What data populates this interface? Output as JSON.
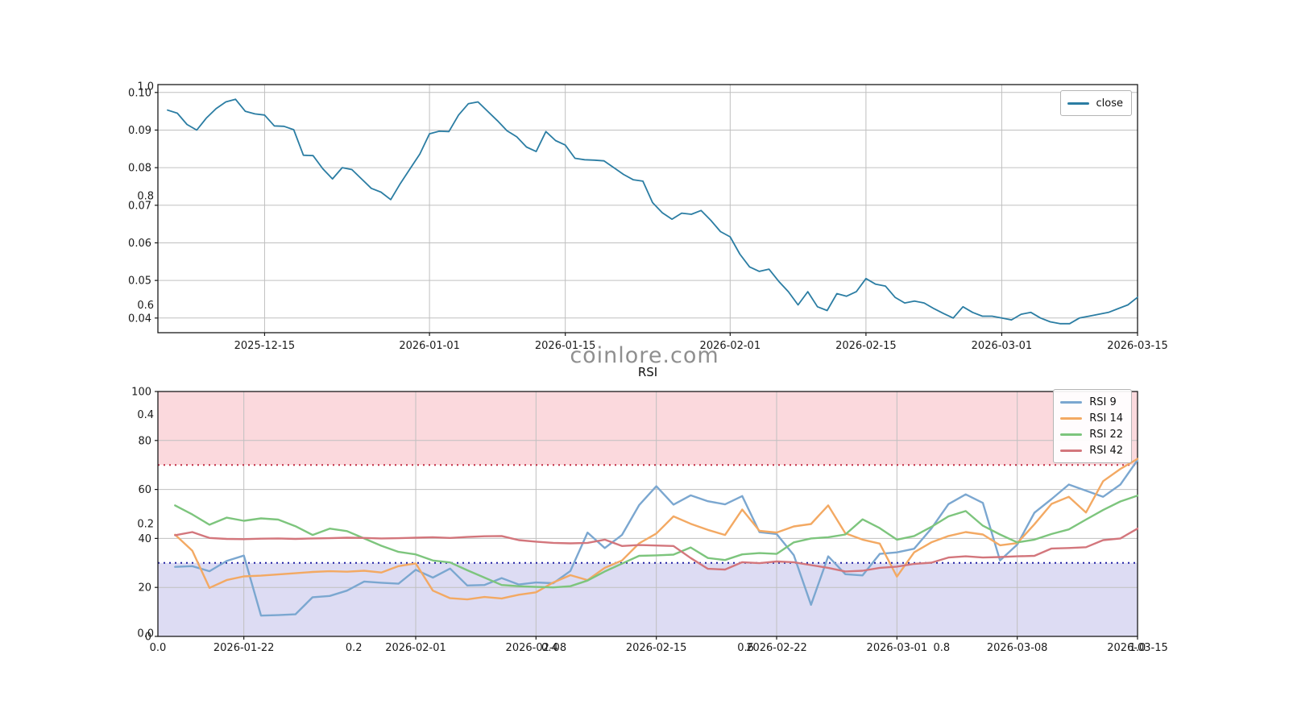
{
  "watermark": "coinlore.com",
  "palette": {
    "spine": "#1a1a1a",
    "grid": "#c0c0c0",
    "tick_text": "#1a1a1a",
    "watermark_color": "#8f8f8f",
    "overbought_band": "#fbd9dd",
    "oversold_band": "#dddcf3",
    "overbought_line": "#c22f45",
    "oversold_line": "#2121a3"
  },
  "chart_data": [
    {
      "type": "line",
      "title": "",
      "xlabel": "",
      "ylabel": "",
      "grid": true,
      "legend_position": "upper right",
      "legend": [
        "close"
      ],
      "ylim": [
        0.0361,
        0.1021
      ],
      "yticks": [
        {
          "v": 0.04,
          "label": "0.04"
        },
        {
          "v": 0.05,
          "label": "0.05"
        },
        {
          "v": 0.06,
          "label": "0.06"
        },
        {
          "v": 0.07,
          "label": "0.07"
        },
        {
          "v": 0.08,
          "label": "0.08"
        },
        {
          "v": 0.09,
          "label": "0.09"
        },
        {
          "v": 0.1,
          "label": "0.10"
        }
      ],
      "x_domain": [
        "2025-12-04",
        "2026-03-15"
      ],
      "xticks": [
        {
          "date": "2025-12-15",
          "label": "2025-12-15"
        },
        {
          "date": "2026-01-01",
          "label": "2026-01-01"
        },
        {
          "date": "2026-01-15",
          "label": "2026-01-15"
        },
        {
          "date": "2026-02-01",
          "label": "2026-02-01"
        },
        {
          "date": "2026-02-15",
          "label": "2026-02-15"
        },
        {
          "date": "2026-03-01",
          "label": "2026-03-01"
        },
        {
          "date": "2026-03-15",
          "label": "2026-03-15"
        }
      ],
      "series": [
        {
          "id": "close-line",
          "name": "close",
          "color": "#2b7da3",
          "width": 1.8,
          "start": "2025-12-05",
          "step_days": 1,
          "values": [
            0.0953,
            0.0945,
            0.0915,
            0.09,
            0.0932,
            0.0957,
            0.0975,
            0.0982,
            0.095,
            0.0943,
            0.094,
            0.0911,
            0.091,
            0.0901,
            0.0833,
            0.0832,
            0.0797,
            0.077,
            0.08,
            0.0795,
            0.077,
            0.0745,
            0.0735,
            0.0715,
            0.0758,
            0.0797,
            0.0836,
            0.089,
            0.0897,
            0.0896,
            0.094,
            0.097,
            0.0975,
            0.095,
            0.0925,
            0.0898,
            0.0882,
            0.0855,
            0.0843,
            0.0896,
            0.0872,
            0.086,
            0.0825,
            0.0821,
            0.082,
            0.0818,
            0.08,
            0.0782,
            0.0768,
            0.0764,
            0.0707,
            0.068,
            0.0663,
            0.0679,
            0.0676,
            0.0686,
            0.066,
            0.063,
            0.0616,
            0.057,
            0.0536,
            0.0524,
            0.053,
            0.0498,
            0.047,
            0.0435,
            0.047,
            0.043,
            0.042,
            0.0465,
            0.0458,
            0.047,
            0.0505,
            0.049,
            0.0485,
            0.0455,
            0.044,
            0.0445,
            0.044,
            0.0425,
            0.0412,
            0.04,
            0.043,
            0.0415,
            0.0405,
            0.0405,
            0.04,
            0.0395,
            0.041,
            0.0415,
            0.04,
            0.039,
            0.0385,
            0.0385,
            0.04,
            0.0405,
            0.041,
            0.0415,
            0.0425,
            0.0435,
            0.0455
          ]
        }
      ]
    },
    {
      "type": "line",
      "title": "RSI",
      "xlabel": "",
      "ylabel": "",
      "grid": true,
      "legend_position": "upper right",
      "legend": [
        "RSI 9",
        "RSI 14",
        "RSI 22",
        "RSI 42"
      ],
      "ylim": [
        0,
        100
      ],
      "yticks": [
        {
          "v": 0,
          "label": "0"
        },
        {
          "v": 20,
          "label": "20"
        },
        {
          "v": 40,
          "label": "40"
        },
        {
          "v": 60,
          "label": "60"
        },
        {
          "v": 80,
          "label": "80"
        },
        {
          "v": 100,
          "label": "100"
        }
      ],
      "bands": [
        {
          "from": 70,
          "to": 100,
          "color": "#fbd9dd",
          "name": "overbought-band"
        },
        {
          "from": 0,
          "to": 30,
          "color": "#dddcf3",
          "name": "oversold-band"
        }
      ],
      "hlines": [
        {
          "y": 70,
          "color": "#c22f45",
          "name": "overbought-threshold"
        },
        {
          "y": 30,
          "color": "#2121a3",
          "name": "oversold-threshold"
        }
      ],
      "x_domain": [
        "2026-01-17",
        "2026-03-15"
      ],
      "xticks": [
        {
          "date": "2026-01-22",
          "label": "2026-01-22"
        },
        {
          "date": "2026-02-01",
          "label": "2026-02-01"
        },
        {
          "date": "2026-02-08",
          "label": "2026-02-08"
        },
        {
          "date": "2026-02-15",
          "label": "2026-02-15"
        },
        {
          "date": "2026-02-22",
          "label": "2026-02-22"
        },
        {
          "date": "2026-03-01",
          "label": "2026-03-01"
        },
        {
          "date": "2026-03-08",
          "label": "2026-03-08"
        },
        {
          "date": "2026-03-15",
          "label": "2026-03-15"
        }
      ],
      "series": [
        {
          "id": "rsi-9-line",
          "name": "RSI 9",
          "color": "#7ba7d0",
          "width": 2.4,
          "start": "2026-01-18",
          "step_days": 1,
          "values": [
            28.4,
            28.7,
            26.6,
            30.8,
            33.0,
            8.5,
            8.7,
            9.0,
            16.0,
            16.5,
            18.7,
            22.4,
            21.9,
            21.5,
            27.2,
            24.0,
            27.7,
            20.8,
            21.0,
            23.8,
            21.2,
            22.0,
            21.7,
            26.7,
            42.4,
            36.1,
            41.4,
            53.6,
            61.3,
            53.8,
            57.6,
            55.2,
            53.9,
            57.3,
            42.6,
            41.8,
            33.2,
            12.9,
            32.7,
            25.4,
            24.9,
            33.7,
            34.3,
            35.8,
            44.0,
            54.0,
            58.0,
            54.5,
            31.0,
            37.5,
            50.5,
            56.1,
            62.0,
            59.5,
            57.0,
            62.0,
            72.0
          ]
        },
        {
          "id": "rsi-14-line",
          "name": "RSI 14",
          "color": "#f3a963",
          "width": 2.4,
          "start": "2026-01-18",
          "step_days": 1,
          "values": [
            41.5,
            35.0,
            19.8,
            23.0,
            24.5,
            24.8,
            25.3,
            25.8,
            26.3,
            26.6,
            26.4,
            26.8,
            26.1,
            28.7,
            29.8,
            18.7,
            15.6,
            15.1,
            16.1,
            15.5,
            17.0,
            18.0,
            22.0,
            25.0,
            23.0,
            28.0,
            31.0,
            38.0,
            42.0,
            49.0,
            46.0,
            43.5,
            41.4,
            51.8,
            43.1,
            42.4,
            44.9,
            45.9,
            53.5,
            42.1,
            39.5,
            37.9,
            24.4,
            34.3,
            38.4,
            41.0,
            42.6,
            41.6,
            37.2,
            38.1,
            45.8,
            54.1,
            57.0,
            50.6,
            63.4,
            68.4,
            72.5
          ]
        },
        {
          "id": "rsi-22-line",
          "name": "RSI 22",
          "color": "#7dc57d",
          "width": 2.4,
          "start": "2026-01-18",
          "step_days": 1,
          "values": [
            53.5,
            49.8,
            45.6,
            48.5,
            47.2,
            48.2,
            47.7,
            45.0,
            41.4,
            44.0,
            43.0,
            40.0,
            37.0,
            34.5,
            33.5,
            31.0,
            30.2,
            27.0,
            24.0,
            21.0,
            20.5,
            20.2,
            20.0,
            20.5,
            22.8,
            26.5,
            29.7,
            32.9,
            33.1,
            33.4,
            36.3,
            32.0,
            31.2,
            33.5,
            34.0,
            33.7,
            38.4,
            40.0,
            40.5,
            41.6,
            47.8,
            44.2,
            39.5,
            41.0,
            44.7,
            49.0,
            51.2,
            45.2,
            41.6,
            38.4,
            39.5,
            41.8,
            43.7,
            47.7,
            51.6,
            55.1,
            57.5
          ]
        },
        {
          "id": "rsi-42-line",
          "name": "RSI 42",
          "color": "#d3767c",
          "width": 2.4,
          "start": "2026-01-18",
          "step_days": 1,
          "values": [
            41.3,
            42.6,
            40.2,
            39.8,
            39.7,
            39.9,
            40.0,
            39.8,
            40.0,
            40.1,
            40.3,
            40.2,
            40.0,
            40.1,
            40.3,
            40.5,
            40.2,
            40.6,
            40.9,
            41.0,
            39.3,
            38.7,
            38.2,
            38.0,
            38.2,
            39.5,
            36.9,
            37.3,
            37.1,
            36.9,
            32.0,
            27.6,
            27.3,
            30.3,
            29.9,
            30.6,
            30.3,
            29.1,
            28.0,
            26.5,
            26.8,
            28.0,
            28.5,
            29.6,
            30.1,
            32.2,
            32.7,
            32.2,
            32.4,
            32.7,
            32.9,
            35.9,
            36.1,
            36.4,
            39.3,
            40.0,
            44.0
          ]
        }
      ]
    }
  ],
  "overlay_axis": {
    "y_labels": [
      "1.0",
      "0.8",
      "0.6",
      "0.4",
      "0.2",
      "0.0"
    ],
    "x_labels": [
      "0.0",
      "0.2",
      "0.4",
      "0.6",
      "0.8",
      "1.0"
    ]
  }
}
